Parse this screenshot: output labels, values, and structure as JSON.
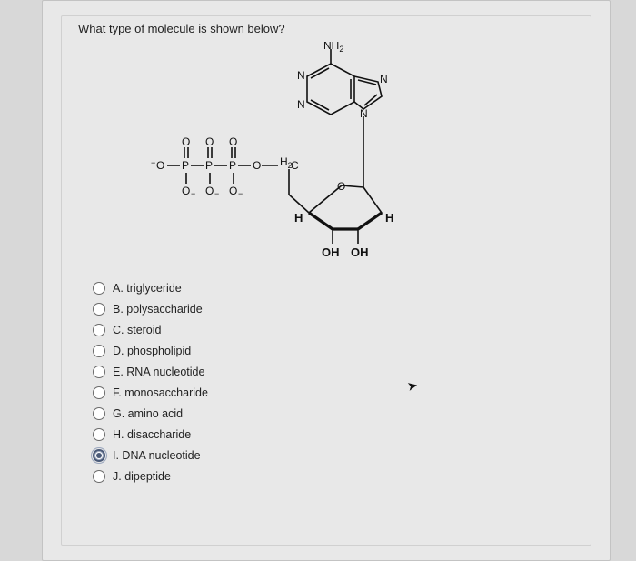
{
  "question": "What type of molecule is shown below?",
  "options": [
    {
      "key": "A",
      "label": "A. triglyceride",
      "selected": false
    },
    {
      "key": "B",
      "label": "B. polysaccharide",
      "selected": false
    },
    {
      "key": "C",
      "label": "C. steroid",
      "selected": false
    },
    {
      "key": "D",
      "label": "D. phospholipid",
      "selected": false
    },
    {
      "key": "E",
      "label": "E. RNA nucleotide",
      "selected": false
    },
    {
      "key": "F",
      "label": "F. monosaccharide",
      "selected": false
    },
    {
      "key": "G",
      "label": "G. amino acid",
      "selected": false
    },
    {
      "key": "H",
      "label": "H. disaccharide",
      "selected": false
    },
    {
      "key": "I",
      "label": "I.  DNA nucleotide",
      "selected": true
    },
    {
      "key": "J",
      "label": "J.  dipeptide",
      "selected": false
    }
  ],
  "molecule": {
    "labels": {
      "nh2": "NH",
      "nh2_sub": "2",
      "n1": "N",
      "n2": "N",
      "n3": "N",
      "n4": "N",
      "o_top1": "O",
      "o_top2": "O",
      "o_top3": "O",
      "o_left": "O",
      "p1": "P",
      "p2": "P",
      "p3": "P",
      "o_neg1": "O",
      "o_neg2": "O",
      "o_neg3": "O",
      "o_link": "O",
      "h2": "H",
      "h2_sub": "2",
      "c": "C",
      "h_left": "H",
      "h_right": "H",
      "oh1": "OH",
      "oh2": "OH",
      "o_ring": "O",
      "minus": "−"
    },
    "colors": {
      "stroke": "#111111",
      "text": "#111111",
      "bg": "#e8e8e8"
    }
  },
  "ui": {
    "colors": {
      "page_bg": "#d8d8d8",
      "card_bg": "#e8e8e8",
      "card_border": "#c3c3c3",
      "radio_border": "#6b6b6b",
      "radio_selected": "#4a5a78",
      "text": "#222222"
    },
    "fontsize": {
      "question": 13,
      "option": 12.5
    }
  }
}
